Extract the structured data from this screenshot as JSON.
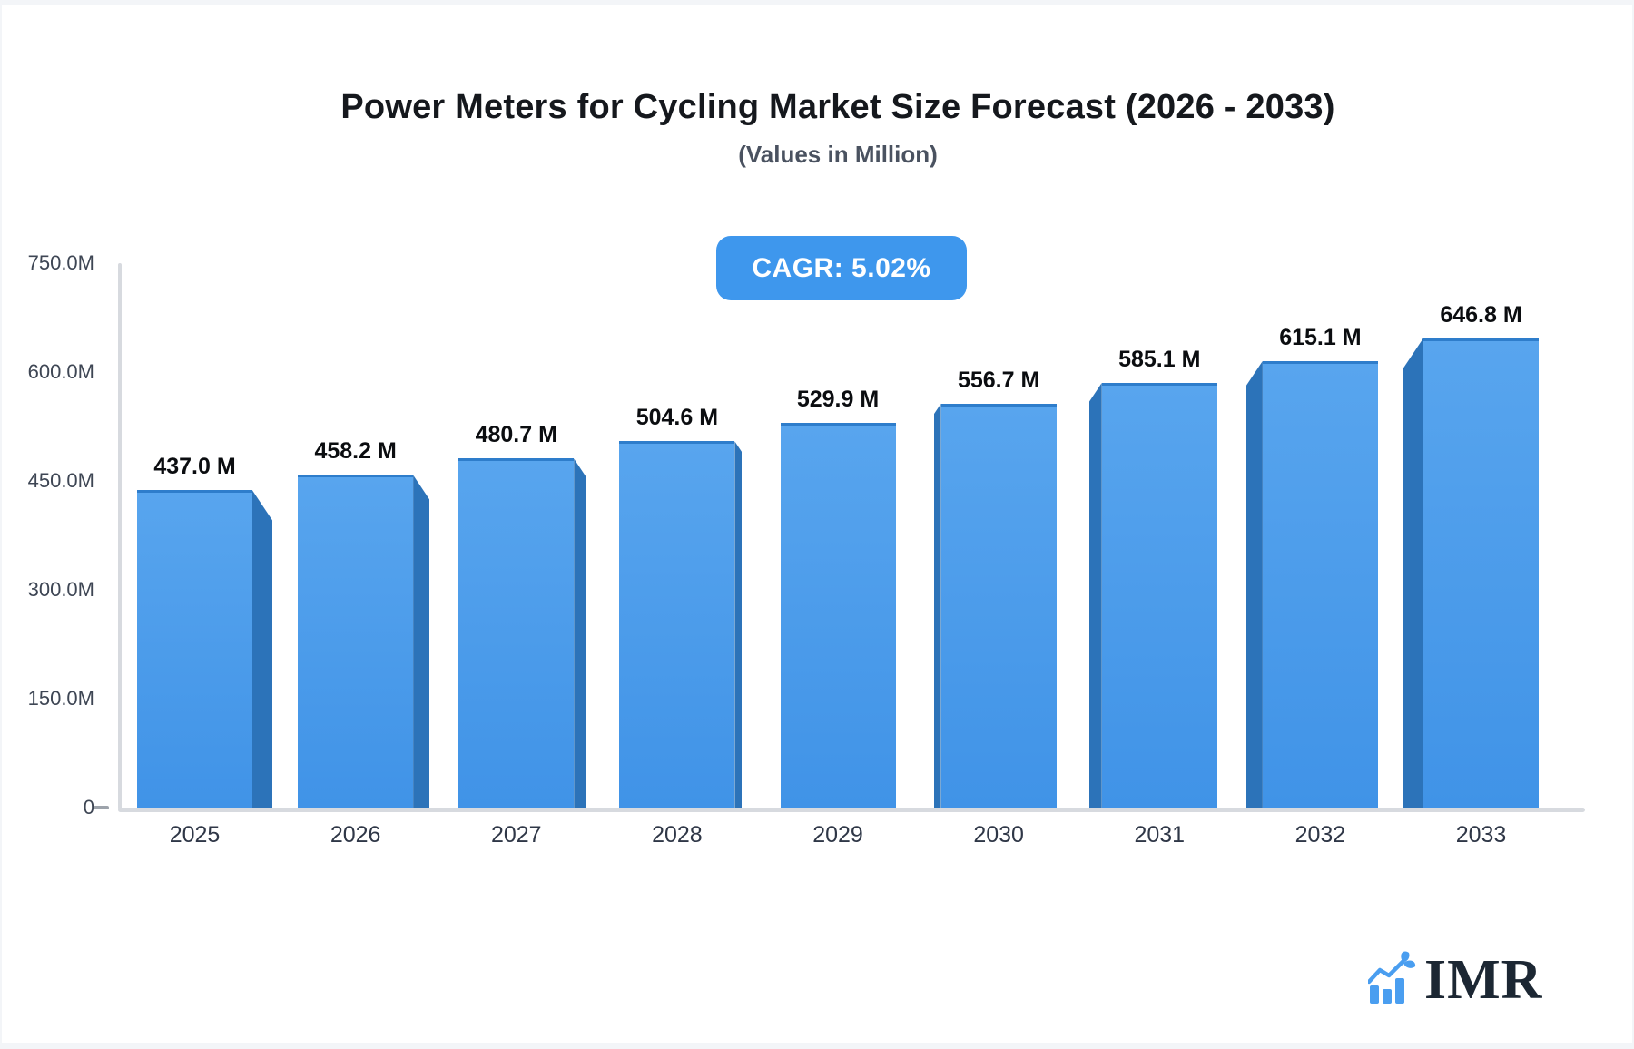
{
  "header": {
    "title": "Power Meters for Cycling Market Size Forecast (2026 - 2033)",
    "subtitle": "(Values in Million)",
    "cagr_label": "CAGR: 5.02%"
  },
  "chart_data": {
    "type": "bar",
    "title": "Power Meters for Cycling Market Size Forecast (2026 - 2033)",
    "subtitle": "(Values in Million)",
    "unit": "Million",
    "cagr_percent": 5.02,
    "categories": [
      "2025",
      "2026",
      "2027",
      "2028",
      "2029",
      "2030",
      "2031",
      "2032",
      "2033"
    ],
    "values": [
      437.0,
      458.2,
      480.7,
      504.6,
      529.9,
      556.7,
      585.1,
      615.1,
      646.8
    ],
    "bar_labels": [
      "437.0 M",
      "458.2 M",
      "480.7 M",
      "504.6 M",
      "529.9 M",
      "556.7 M",
      "585.1 M",
      "615.1 M",
      "646.8 M"
    ],
    "yticks": [
      {
        "label": "0",
        "value": 0
      },
      {
        "label": "150.0M",
        "value": 150
      },
      {
        "label": "300.0M",
        "value": 300
      },
      {
        "label": "450.0M",
        "value": 450
      },
      {
        "label": "600.0M",
        "value": 600
      },
      {
        "label": "750.0M",
        "value": 750
      }
    ],
    "ylim": [
      0,
      750
    ],
    "grid": false,
    "legend": false,
    "bar_style": "3d-beveled"
  },
  "colors": {
    "badge_bg": "#3e97ed",
    "badge_text": "#ffffff",
    "bar_face_top": "#58a5ee",
    "bar_face_bottom": "#4093e7",
    "bar_top_border": "#2e7dcb",
    "bar_side": "#2c73b9",
    "axis_line": "#d7dadf",
    "title_text": "#15181d",
    "subtitle_text": "#4a5260",
    "value_label_text": "#0b0d10",
    "tick_text": "#3e4654"
  },
  "logo": {
    "text": "IMR",
    "icon": "bar-chart-growth-leaf"
  }
}
